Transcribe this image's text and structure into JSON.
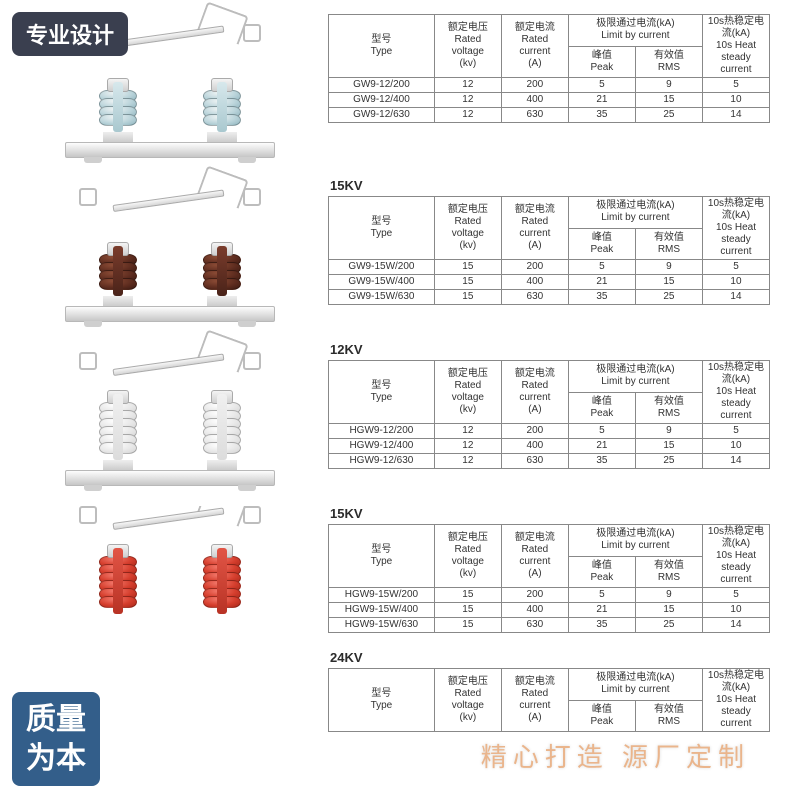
{
  "badges": {
    "top": "专业设计",
    "bottomL1": "质量",
    "bottomL2": "为本",
    "tagline": "精心打造 源厂定制"
  },
  "headers": {
    "type": {
      "cn": "型号",
      "en": "Type"
    },
    "volt": {
      "cn": "额定电压",
      "en1": "Rated",
      "en2": "voltage",
      "unit": "(kv)"
    },
    "curr": {
      "cn": "额定电流",
      "en1": "Rated",
      "en2": "current",
      "unit": "(A)"
    },
    "limitGroup": {
      "cn": "极限通过电流(kA)",
      "en": "Limit by current"
    },
    "peak": {
      "cn": "峰值",
      "en": "Peak"
    },
    "rms": {
      "cn": "有效值",
      "en": "RMS"
    },
    "heat": {
      "cn": "10s热稳定电流(kA)",
      "en1": "10s Heat steady",
      "en2": "current"
    }
  },
  "sections": [
    {
      "label": "",
      "skin": "porc-gray",
      "discs": 4,
      "rows": [
        {
          "type": "GW9-12/200",
          "kv": "12",
          "a": "200",
          "peak": "5",
          "rms": "9",
          "heat": "5"
        },
        {
          "type": "GW9-12/400",
          "kv": "12",
          "a": "400",
          "peak": "21",
          "rms": "15",
          "heat": "10"
        },
        {
          "type": "GW9-12/630",
          "kv": "12",
          "a": "630",
          "peak": "35",
          "rms": "25",
          "heat": "14"
        }
      ]
    },
    {
      "label": "15KV",
      "skin": "porc-brown",
      "discs": 4,
      "rows": [
        {
          "type": "GW9-15W/200",
          "kv": "15",
          "a": "200",
          "peak": "5",
          "rms": "9",
          "heat": "5"
        },
        {
          "type": "GW9-15W/400",
          "kv": "15",
          "a": "400",
          "peak": "21",
          "rms": "15",
          "heat": "10"
        },
        {
          "type": "GW9-15W/630",
          "kv": "15",
          "a": "630",
          "peak": "35",
          "rms": "25",
          "heat": "14"
        }
      ]
    },
    {
      "label": "12KV",
      "skin": "poly-white",
      "discs": 6,
      "rows": [
        {
          "type": "HGW9-12/200",
          "kv": "12",
          "a": "200",
          "peak": "5",
          "rms": "9",
          "heat": "5"
        },
        {
          "type": "HGW9-12/400",
          "kv": "12",
          "a": "400",
          "peak": "21",
          "rms": "15",
          "heat": "10"
        },
        {
          "type": "HGW9-12/630",
          "kv": "12",
          "a": "630",
          "peak": "35",
          "rms": "25",
          "heat": "14"
        }
      ]
    },
    {
      "label": "15KV",
      "skin": "poly-red",
      "discs": 6,
      "rows": [
        {
          "type": "HGW9-15W/200",
          "kv": "15",
          "a": "200",
          "peak": "5",
          "rms": "9",
          "heat": "5"
        },
        {
          "type": "HGW9-15W/400",
          "kv": "15",
          "a": "400",
          "peak": "21",
          "rms": "15",
          "heat": "10"
        },
        {
          "type": "HGW9-15W/630",
          "kv": "15",
          "a": "630",
          "peak": "35",
          "rms": "25",
          "heat": "14"
        }
      ]
    }
  ],
  "trailingLabel": "24KV"
}
